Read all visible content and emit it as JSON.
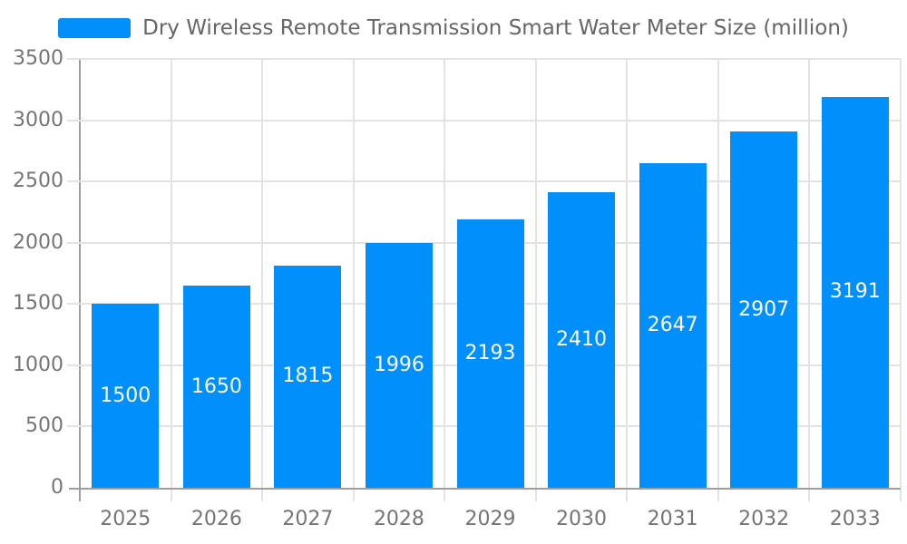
{
  "legend": {
    "label": "Dry Wireless Remote Transmission Smart Water Meter Size (million)"
  },
  "colors": {
    "bar": "#008FFB",
    "grid": "#e3e3e3",
    "axis_line": "#9e9e9e",
    "axis_text": "#757575",
    "legend_text": "#666666",
    "bar_label": "#ffffff",
    "background": "#ffffff"
  },
  "chart_data": {
    "type": "bar",
    "title": "Dry Wireless Remote Transmission Smart Water Meter Size (million)",
    "categories": [
      "2025",
      "2026",
      "2027",
      "2028",
      "2029",
      "2030",
      "2031",
      "2032",
      "2033"
    ],
    "values": [
      1500,
      1650,
      1815,
      1996,
      2193,
      2410,
      2647,
      2907,
      3191
    ],
    "xlabel": "",
    "ylabel": "",
    "ylim": [
      0,
      3500
    ],
    "ytick_interval": 500,
    "ytick_labels": [
      "0",
      "500",
      "1000",
      "1500",
      "2000",
      "2500",
      "3000",
      "3500"
    ],
    "grid": true,
    "legend_position": "top-center",
    "bar_label_position": "inside-middle"
  }
}
